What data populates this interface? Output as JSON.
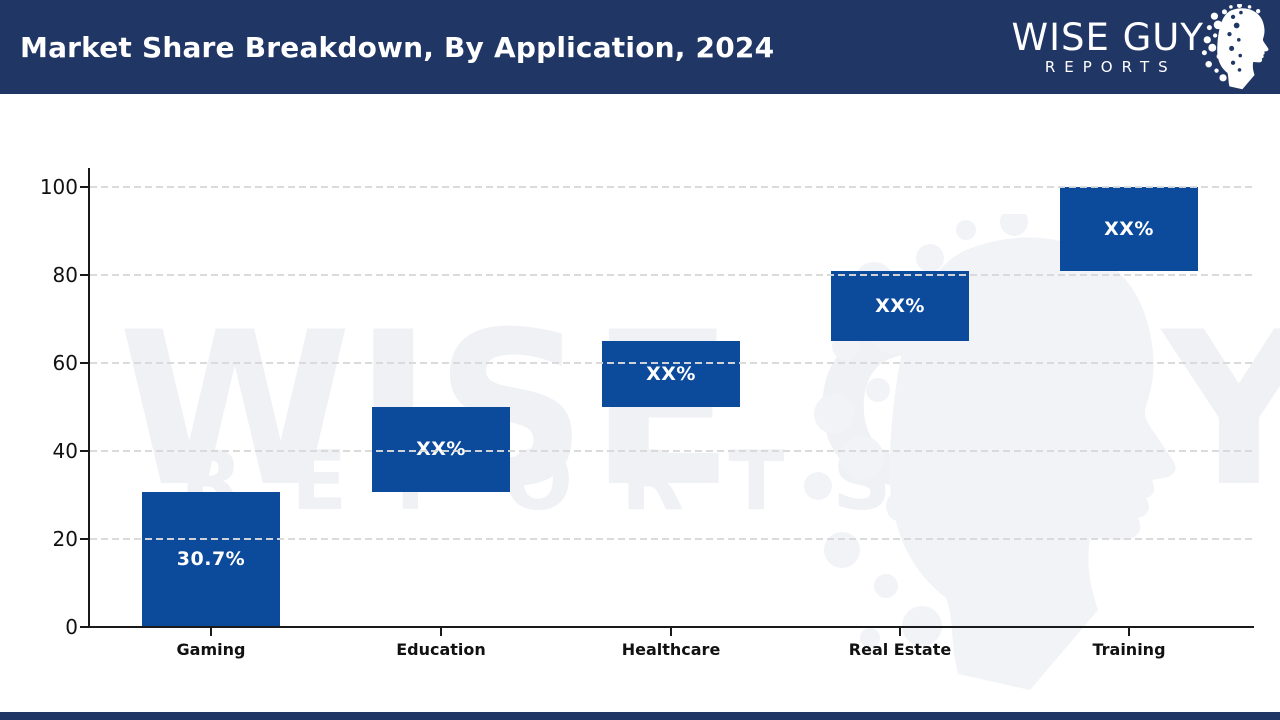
{
  "header": {
    "title": "Market Share Breakdown, By Application, 2024",
    "logo": {
      "line1": "WISE GUY",
      "line2": "REPORTS"
    }
  },
  "watermark": {
    "line1": "WISE GUY",
    "line2": "REPORTS"
  },
  "colors": {
    "header_bg": "#203766",
    "footer_bg": "#203766",
    "bar": "#0c4a9b",
    "bar_label": "#ffffff",
    "gridline": "#d9d9d9",
    "axis": "#1a1a1a",
    "watermark": "#f0f1f4"
  },
  "chart_data": {
    "type": "waterfall",
    "title": "Market Share Breakdown, By Application, 2024",
    "categories": [
      "Gaming",
      "Education",
      "Healthcare",
      "Real Estate",
      "Training"
    ],
    "segments": [
      {
        "category": "Gaming",
        "start": 0,
        "end": 30.7,
        "label": "30.7%"
      },
      {
        "category": "Education",
        "start": 30.7,
        "end": 50,
        "label": "XX%"
      },
      {
        "category": "Healthcare",
        "start": 50,
        "end": 65,
        "label": "XX%"
      },
      {
        "category": "Real Estate",
        "start": 65,
        "end": 81,
        "label": "XX%"
      },
      {
        "category": "Training",
        "start": 81,
        "end": 100,
        "label": "XX%"
      }
    ],
    "y_axis": {
      "ticks": [
        0,
        20,
        40,
        60,
        80,
        100
      ],
      "range": [
        0,
        100
      ],
      "label": ""
    },
    "x_axis": {
      "label": ""
    },
    "grid": "horizontal-dashed",
    "legend": "none"
  }
}
